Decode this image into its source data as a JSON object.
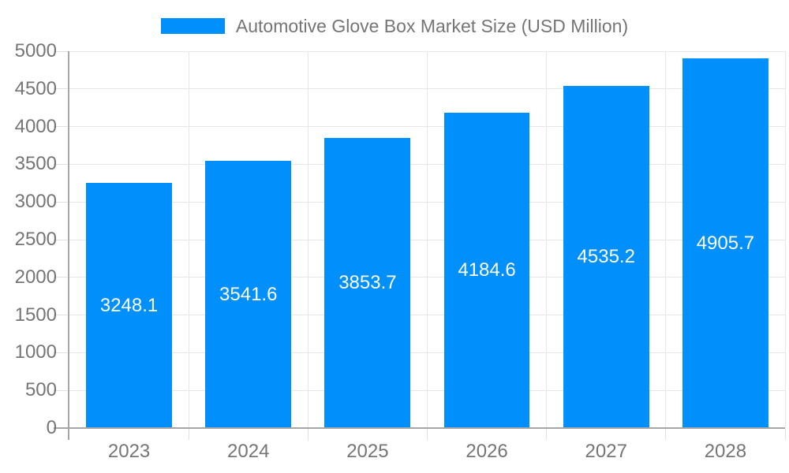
{
  "legend": {
    "label": "Automotive Glove Box Market Size (USD Million)"
  },
  "chart_data": {
    "type": "bar",
    "title": "Automotive Glove Box Market Size (USD Million)",
    "categories": [
      "2023",
      "2024",
      "2025",
      "2026",
      "2027",
      "2028"
    ],
    "values": [
      3248.1,
      3541.6,
      3853.7,
      4184.6,
      4535.2,
      4905.7
    ],
    "data_labels": [
      "3248.1",
      "3541.6",
      "3853.7",
      "4184.6",
      "4535.2",
      "4905.7"
    ],
    "xlabel": "",
    "ylabel": "",
    "ylim": [
      0,
      5000
    ],
    "ytick_step": 500,
    "grid": true,
    "legend_position": "top",
    "colors": {
      "bar": "#008FFB",
      "grid": "#e7e7e7",
      "axis": "#a6a6a6",
      "tick": "#e0e0e0",
      "axis_label": "#757575",
      "legend_text": "#757575",
      "data_label": "#ffffff",
      "background": "#ffffff"
    }
  }
}
